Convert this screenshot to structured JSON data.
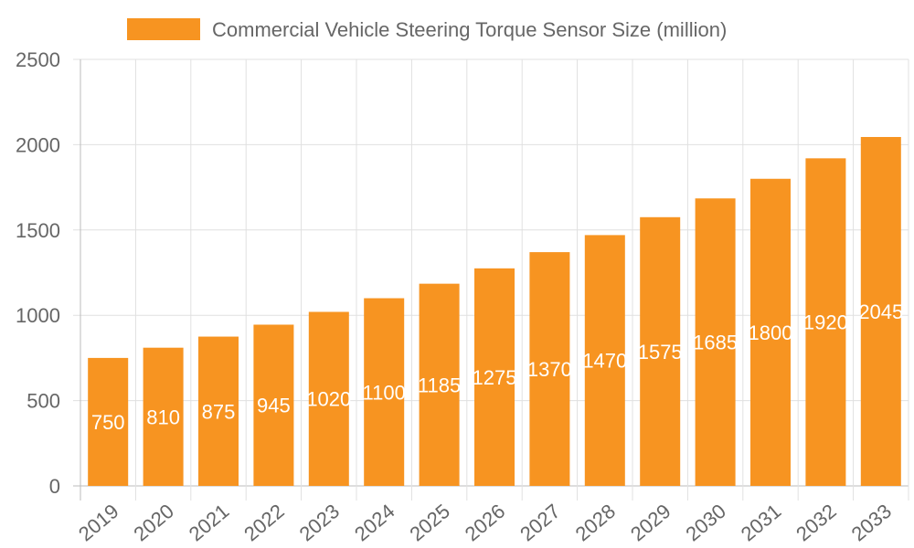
{
  "chart_data": {
    "type": "bar",
    "title": "",
    "xlabel": "",
    "ylabel": "",
    "categories": [
      "2019",
      "2020",
      "2021",
      "2022",
      "2023",
      "2024",
      "2025",
      "2026",
      "2027",
      "2028",
      "2029",
      "2030",
      "2031",
      "2032",
      "2033"
    ],
    "series": [
      {
        "name": "Commercial Vehicle Steering Torque Sensor Size (million)",
        "values": [
          750,
          810,
          875,
          945,
          1020,
          1100,
          1185,
          1275,
          1370,
          1470,
          1575,
          1685,
          1800,
          1920,
          2045
        ]
      }
    ],
    "ylim": [
      0,
      2500
    ],
    "yticks": [
      0,
      500,
      1000,
      1500,
      2000,
      2500
    ],
    "grid": true,
    "legend_position": "top",
    "data_labels": true,
    "colors": {
      "bar": "#f79421",
      "label": "#ffffff",
      "grid": "#e0e0e0",
      "axis_text": "#666666"
    }
  }
}
